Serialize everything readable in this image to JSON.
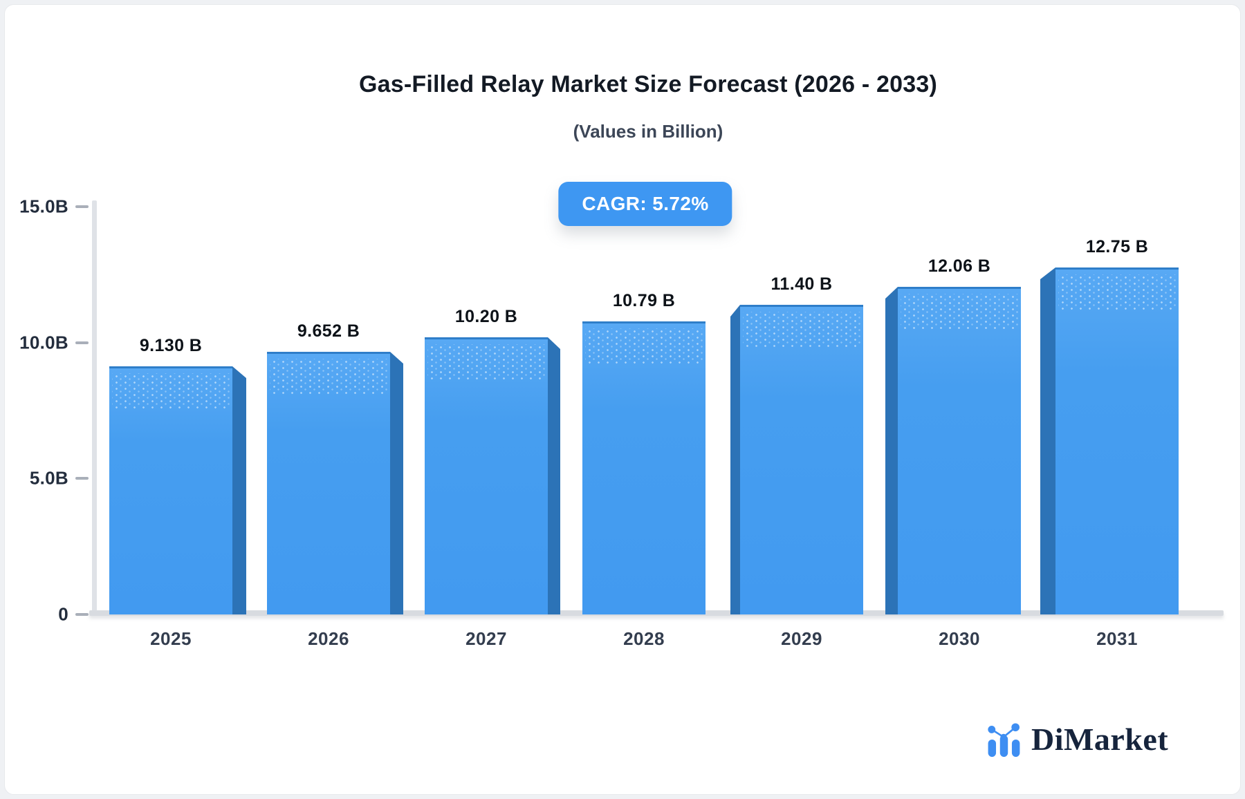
{
  "header": {
    "title": "Gas-Filled Relay Market Size Forecast (2026 - 2033)",
    "subtitle": "(Values in Billion)"
  },
  "badge": {
    "label": "CAGR: 5.72%",
    "bg_color": "#3e97f2",
    "text_color": "#ffffff"
  },
  "chart_data": {
    "type": "bar",
    "title": "Gas-Filled Relay Market Size Forecast (2026 - 2033)",
    "subtitle": "(Values in Billion)",
    "categories": [
      "2025",
      "2026",
      "2027",
      "2028",
      "2029",
      "2030",
      "2031"
    ],
    "values": [
      9.13,
      9.652,
      10.2,
      10.79,
      11.4,
      12.06,
      12.75
    ],
    "value_labels": [
      "9.130 B",
      "9.652 B",
      "10.20 B",
      "10.79 B",
      "11.40 B",
      "12.06 B",
      "12.75 B"
    ],
    "ylim": [
      0,
      15
    ],
    "yticks": [
      {
        "label": "15.0B",
        "value": 15.0
      },
      {
        "label": "10.0B",
        "value": 10.0
      },
      {
        "label": "5.0B",
        "value": 5.0
      },
      {
        "label": "0",
        "value": 0
      }
    ],
    "grid": false,
    "legend": false,
    "bar_face_color": "#469ef0",
    "bar_side_color": "#2c73b7",
    "style": "3d-bars-center-vanishing-perspective"
  },
  "footer": {
    "logo_text": "DiMarket",
    "logo_icon": "bar-chart-with-trendline-icon",
    "logo_color": "#3e8ef2",
    "logo_text_color": "#16243c"
  }
}
